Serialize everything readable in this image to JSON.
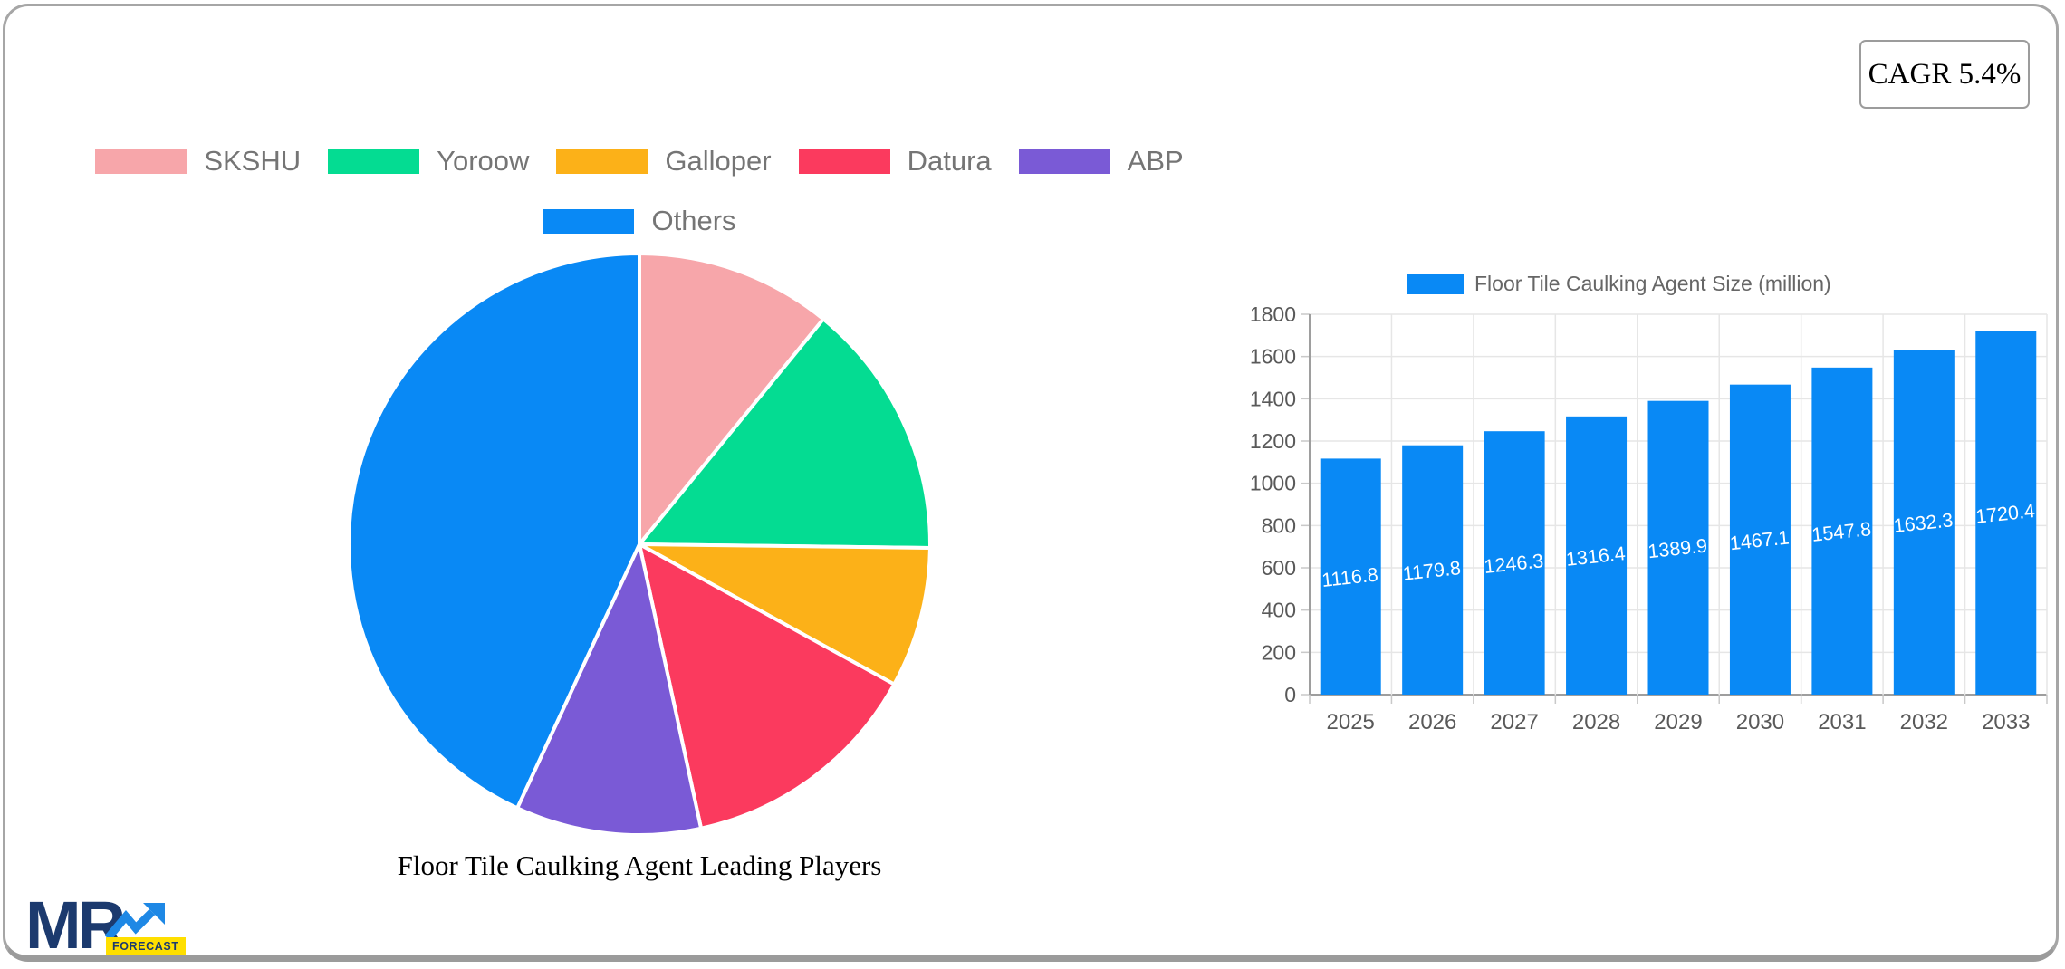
{
  "badge": {
    "label": "CAGR 5.4%"
  },
  "logo": {
    "mr": "MR",
    "forecast": "FORECAST",
    "navy": "#1c3a6e",
    "arrow_blue": "#1e88e5",
    "yellow": "#ffdf00"
  },
  "chart_data": [
    {
      "type": "pie",
      "title": "Floor Tile Caulking Agent Leading Players",
      "labels": [
        "SKSHU",
        "Yoroow",
        "Galloper",
        "Datura",
        "ABP",
        "Others"
      ],
      "values_percent": [
        10.9,
        14.3,
        7.8,
        13.6,
        10.3,
        43.1
      ],
      "colors": [
        "#f7a6aa",
        "#04dc92",
        "#fcb118",
        "#fb3a5e",
        "#7a5ad6",
        "#0989f5"
      ],
      "start_angle_deg": 0,
      "direction": "clockwise",
      "legend_position": "top",
      "legend_rows": [
        5,
        1
      ]
    },
    {
      "type": "bar",
      "legend": "Floor Tile Caulking Agent Size (million)",
      "categories": [
        "2025",
        "2026",
        "2027",
        "2028",
        "2029",
        "2030",
        "2031",
        "2032",
        "2033"
      ],
      "values": [
        1116.8,
        1179.8,
        1246.3,
        1316.4,
        1389.9,
        1467.1,
        1547.8,
        1632.3,
        1720.4
      ],
      "bar_color": "#0989f5",
      "value_label_color": "#ffffff",
      "xlabel": "",
      "ylabel": "",
      "ylim": [
        0,
        1800
      ],
      "ytick_step": 200,
      "grid": true,
      "legend_position": "top"
    }
  ]
}
